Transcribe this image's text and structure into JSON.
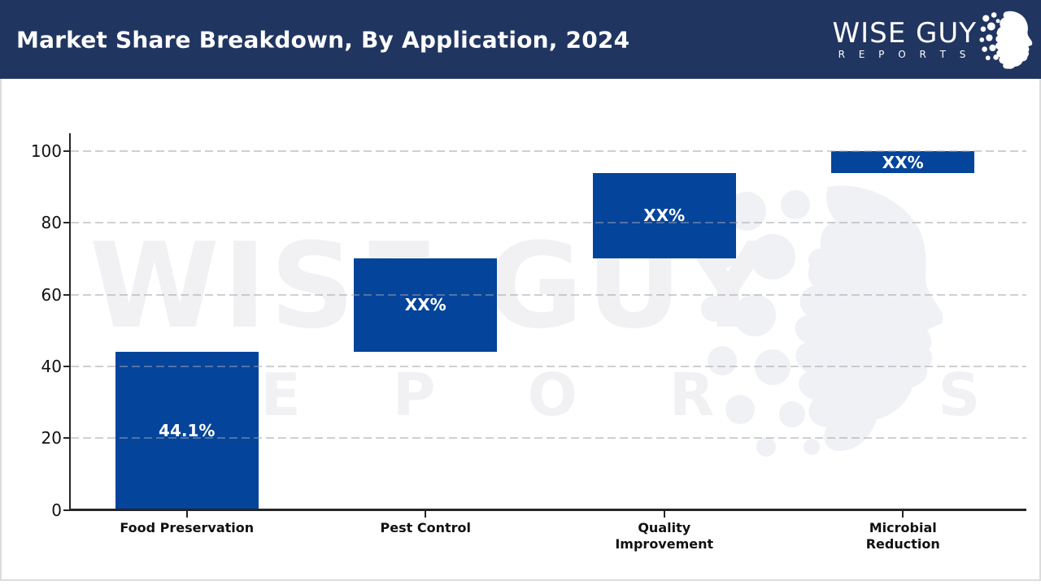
{
  "header": {
    "title": "Market Share Breakdown, By Application, 2024",
    "logo": {
      "wordmark": "WISE GUY",
      "subtext": "R E P O R T S"
    }
  },
  "watermark": {
    "wordmark": "WISE GUY",
    "subtext": "R E P O R T S"
  },
  "chart_data": {
    "type": "bar",
    "subtype": "waterfall-style stacked market-share breakdown",
    "title": "Market Share Breakdown, By Application, 2024",
    "categories": [
      "Food Preservation",
      "Pest Control",
      "Quality Improvement",
      "Microbial Reduction"
    ],
    "xtick_label_lines": [
      [
        "Food Preservation"
      ],
      [
        "Pest Control"
      ],
      [
        "Quality",
        "Improvement"
      ],
      [
        "Microbial",
        "Reduction"
      ]
    ],
    "series": [
      {
        "name": "Market share (%)",
        "segments": [
          {
            "category": "Food Preservation",
            "start": 0,
            "end": 44.1,
            "label": "44.1%"
          },
          {
            "category": "Pest Control",
            "start": 44.1,
            "end": 70.2,
            "label": "XX%"
          },
          {
            "category": "Quality Improvement",
            "start": 70.2,
            "end": 93.8,
            "label": "XX%"
          },
          {
            "category": "Microbial Reduction",
            "start": 93.8,
            "end": 100,
            "label": "XX%"
          }
        ]
      }
    ],
    "xlabel": "",
    "ylabel": "",
    "ylim": [
      0,
      100
    ],
    "yticks": [
      0,
      20,
      40,
      60,
      80,
      100
    ],
    "grid": "horizontal dashed, drawn over bars",
    "legend": "none",
    "bar_color": "#05449B",
    "bar_label_color": "#FFFFFF"
  },
  "colors": {
    "header_bg": "#213561",
    "background": "#FFFFFF",
    "frame_border": "#DCDCDC",
    "axis": "#262626",
    "gridline": "#D4D6DA",
    "watermark": "#F1F1F4"
  }
}
